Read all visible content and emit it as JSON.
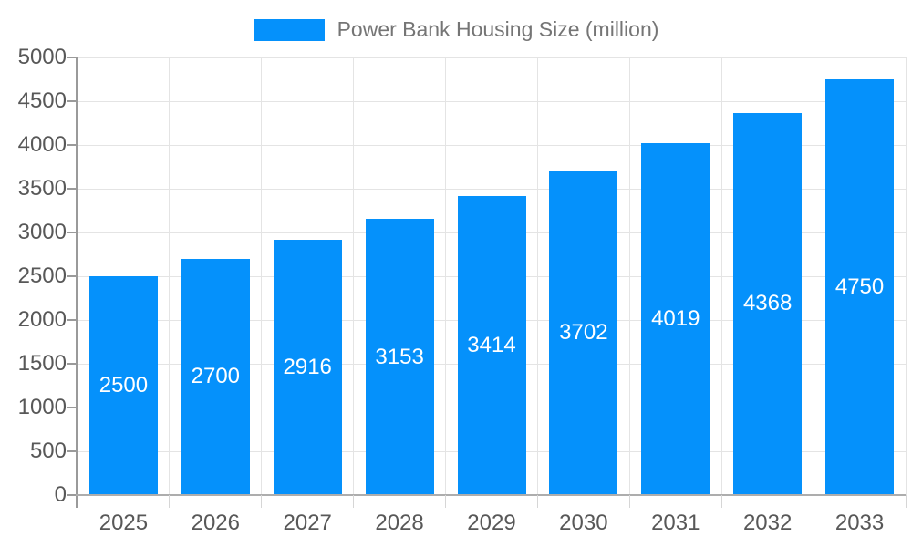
{
  "legend": {
    "items": [
      {
        "label": "Power Bank Housing Size (million)",
        "color": "#0591FB"
      }
    ]
  },
  "chart_data": {
    "type": "bar",
    "title": "Power Bank Housing Size (million)",
    "categories": [
      "2025",
      "2026",
      "2027",
      "2028",
      "2029",
      "2030",
      "2031",
      "2032",
      "2033"
    ],
    "series": [
      {
        "name": "Power Bank Housing Size (million)",
        "color": "#0591FB",
        "values": [
          2500,
          2700,
          2916,
          3153,
          3414,
          3702,
          4019,
          4368,
          4750
        ]
      }
    ],
    "value_labels": [
      "2500",
      "2700",
      "2916",
      "3153",
      "3414",
      "3702",
      "4019",
      "4368",
      "4750"
    ],
    "value_label_color": "#FFFFFF",
    "xlabel": "",
    "ylabel": "",
    "ylim": [
      0,
      5000
    ],
    "ytick_step": 500,
    "ytick_labels": [
      "0",
      "500",
      "1000",
      "1500",
      "2000",
      "2500",
      "3000",
      "3500",
      "4000",
      "4500",
      "5000"
    ],
    "grid": true,
    "legend_position": "top"
  },
  "colors": {
    "bar": "#0591FB",
    "axis_label": "#585858",
    "legend_text": "#757575",
    "gridline": "#E4E4E4",
    "y_axis_line": "#9A9A9A",
    "x_axis_line": "#ADADAD",
    "x_tick": "#D6D6D6",
    "y_tick": "#9A9A9A",
    "background": "#FFFFFF"
  }
}
